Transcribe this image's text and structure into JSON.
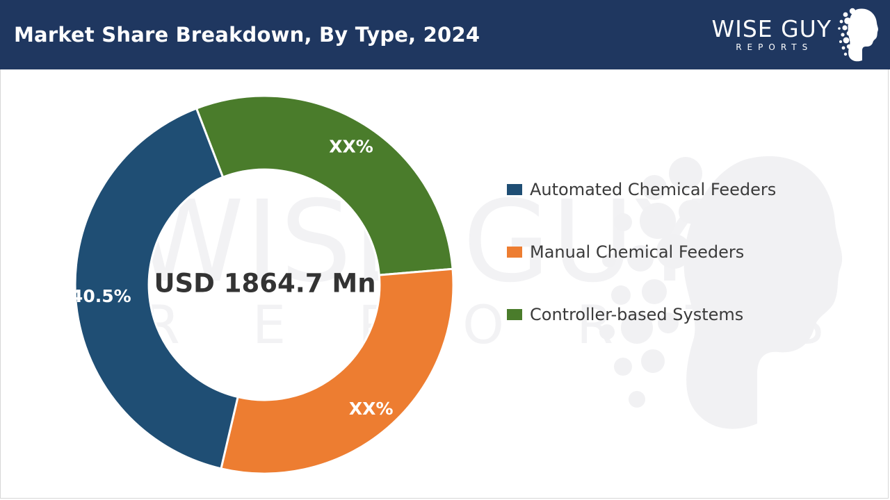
{
  "header": {
    "title": "Market Share Breakdown, By Type, 2024",
    "logo": {
      "line1": "WISE GUY",
      "line2": "REPORTS"
    }
  },
  "watermark": {
    "line1": "WISE GUY",
    "line2": "R E P O R T S"
  },
  "colors": {
    "header_bg": "#1f3760",
    "title_text": "#ffffff",
    "center_text": "#333333",
    "legend_text": "#3a3a3a",
    "watermark_text": "#f2f2f4",
    "watermark_face": "#f1f1f3",
    "card_border": "#d6d6d6",
    "slice_label_text": "#ffffff",
    "blue": "#1f4e74",
    "orange": "#ed7d31",
    "green": "#4a7c2b"
  },
  "chart_data": {
    "type": "pie",
    "variant": "donut",
    "title": "Market Share Breakdown, By Type, 2024",
    "center_label": "USD 1864.7 Mn",
    "start_angle_deg": -21,
    "inner_radius_ratio": 0.61,
    "label_radius_ratio": 0.865,
    "legend_position": "right",
    "segments": [
      {
        "name": "Controller-based Systems",
        "label": "XX%",
        "pct": 29.5,
        "color": "#4a7c2b"
      },
      {
        "name": "Manual Chemical Feeders",
        "label": "XX%",
        "pct": 30.0,
        "color": "#ed7d31"
      },
      {
        "name": "Automated Chemical Feeders",
        "label": "40.5%",
        "pct": 40.5,
        "color": "#1f4e74"
      }
    ],
    "legend": [
      {
        "label": "Automated Chemical Feeders",
        "color": "#1f4e74"
      },
      {
        "label": "Manual Chemical Feeders",
        "color": "#ed7d31"
      },
      {
        "label": "Controller-based Systems",
        "color": "#4a7c2b"
      }
    ]
  }
}
